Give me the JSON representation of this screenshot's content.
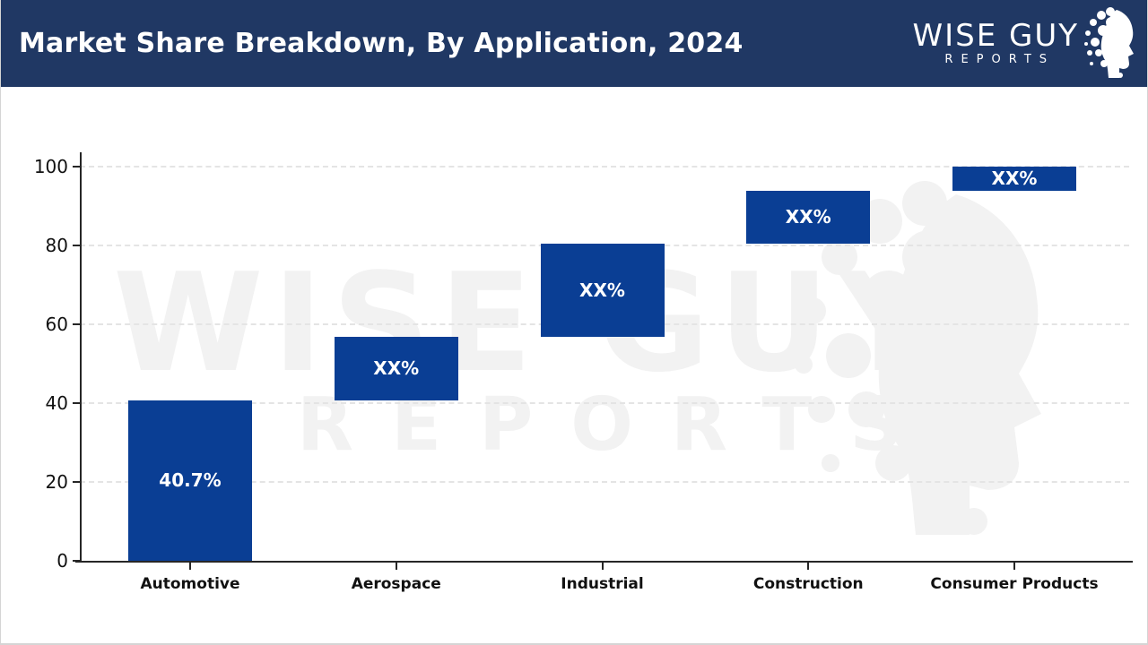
{
  "header": {
    "title": "Market Share Breakdown, By Application, 2024",
    "bg_color": "#203864",
    "logo": {
      "line1": "WISE GUY",
      "line2": "REPORTS"
    }
  },
  "watermark": {
    "line1": "WISE GUY",
    "line2": "REPORTS"
  },
  "chart_data": {
    "type": "bar",
    "subtype": "waterfall",
    "title": "Market Share Breakdown, By Application, 2024",
    "xlabel": "",
    "ylabel": "",
    "categories": [
      "Automotive",
      "Aerospace",
      "Industrial",
      "Construction",
      "Consumer Products"
    ],
    "segments": [
      {
        "category": "Automotive",
        "start": 0,
        "end": 40.7,
        "value": 40.7,
        "label": "40.7%"
      },
      {
        "category": "Aerospace",
        "start": 40.7,
        "end": 56.8,
        "value": 16.1,
        "label": "XX%"
      },
      {
        "category": "Industrial",
        "start": 56.8,
        "end": 80.5,
        "value": 23.7,
        "label": "XX%"
      },
      {
        "category": "Construction",
        "start": 80.5,
        "end": 93.9,
        "value": 13.4,
        "label": "XX%"
      },
      {
        "category": "Consumer Products",
        "start": 93.9,
        "end": 100,
        "value": 6.1,
        "label": "XX%"
      }
    ],
    "yticks": [
      0,
      20,
      40,
      60,
      80,
      100
    ],
    "ylim": [
      0,
      104
    ],
    "grid": "horizontal dashed, legend none",
    "bar_color": "#0a3e94",
    "bar_label_color": "#ffffff",
    "gridline_color": "#e4e4e4",
    "axis_color": "#262626"
  }
}
